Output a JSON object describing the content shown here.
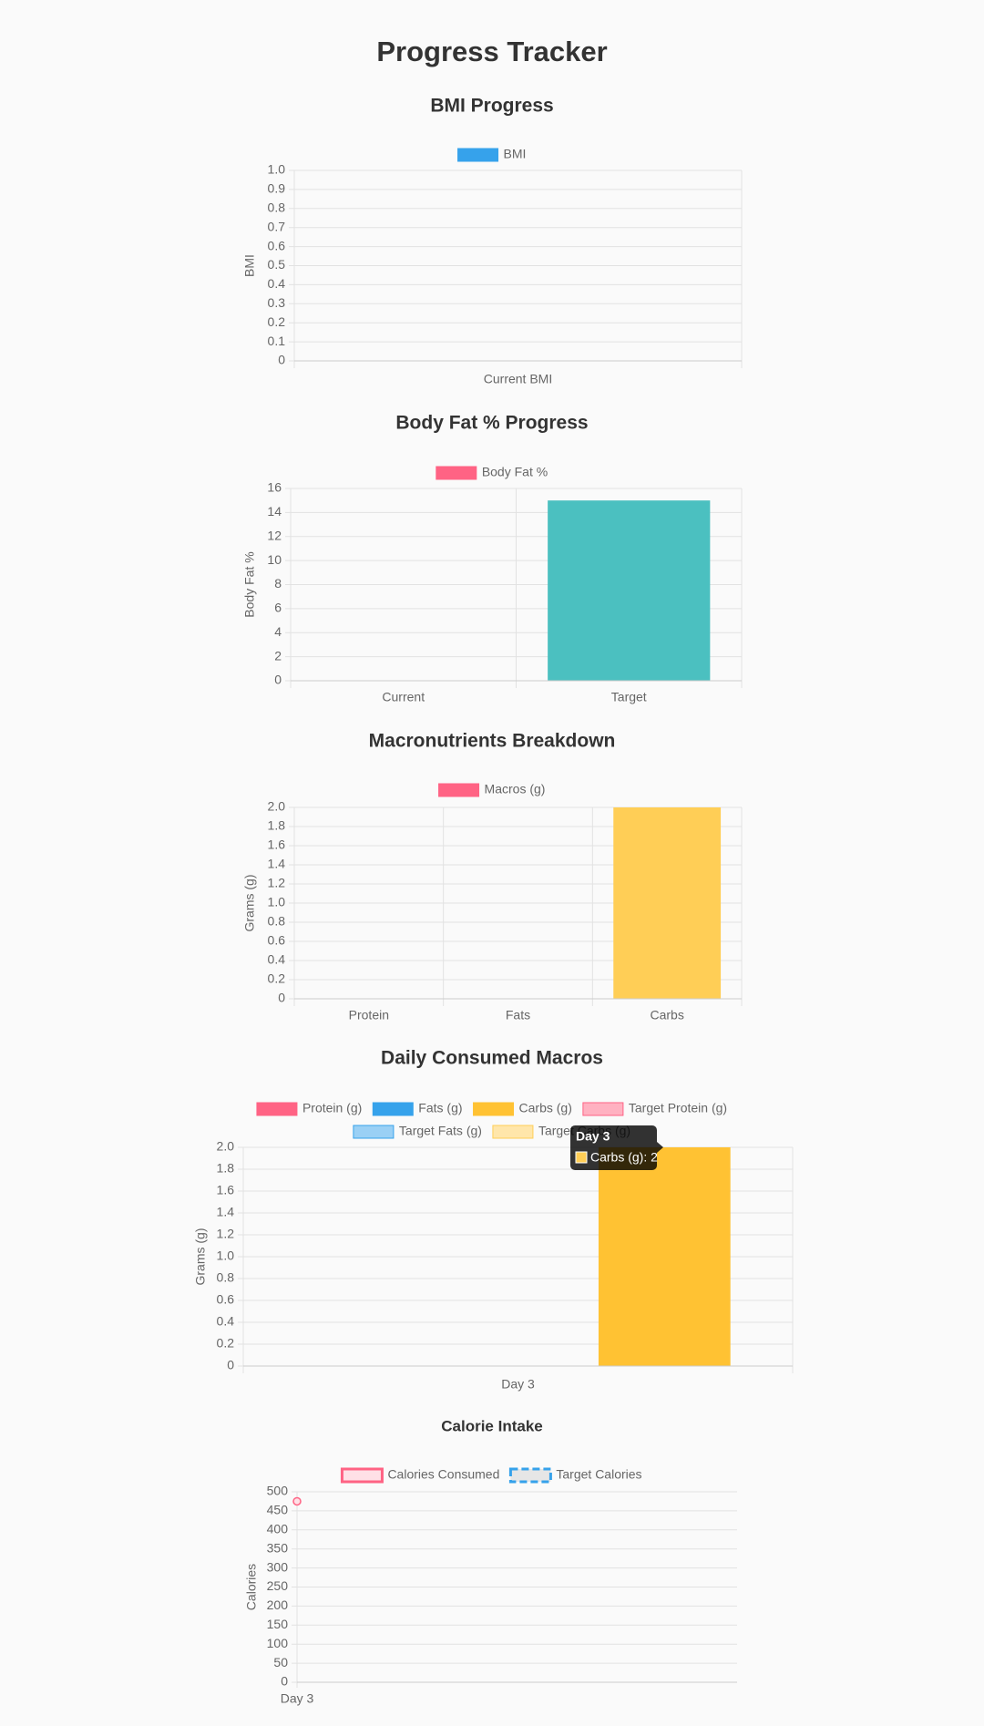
{
  "title": "Progress Tracker",
  "chart_data": [
    {
      "type": "bar",
      "title": "BMI Progress",
      "ylabel": "BMI",
      "categories": [
        "Current BMI"
      ],
      "series": [
        {
          "name": "BMI",
          "color": "#36a2eb",
          "values": [
            0
          ]
        }
      ],
      "ylim": [
        0,
        1
      ],
      "yticks": [
        0,
        0.1,
        0.2,
        0.3,
        0.4,
        0.5,
        0.6,
        0.7,
        0.8,
        0.9,
        {
          "value": 1,
          "label": "1.0"
        }
      ],
      "grid": true,
      "legend": "top"
    },
    {
      "type": "bar",
      "title": "Body Fat % Progress",
      "ylabel": "Body Fat %",
      "categories": [
        "Current",
        "Target"
      ],
      "series": [
        {
          "name": "Body Fat %",
          "color": "#ff6384",
          "colors": [
            "#ff6384",
            "#4bc0c0"
          ],
          "values": [
            0,
            15
          ]
        }
      ],
      "ylim": [
        0,
        16
      ],
      "yticks": [
        0,
        2,
        4,
        6,
        8,
        10,
        12,
        14,
        16
      ],
      "grid": true,
      "legend": "top"
    },
    {
      "type": "bar",
      "title": "Macronutrients Breakdown",
      "ylabel": "Grams (g)",
      "categories": [
        "Protein",
        "Fats",
        "Carbs"
      ],
      "series": [
        {
          "name": "Macros (g)",
          "color": "#ff6384",
          "colors": [
            "#ff6384",
            "#36a2eb",
            "#ffce56"
          ],
          "values": [
            0,
            0,
            2
          ]
        }
      ],
      "ylim": [
        0,
        2
      ],
      "yticks": [
        0,
        0.2,
        0.4,
        0.6,
        0.8,
        {
          "value": 1,
          "label": "1.0"
        },
        1.2,
        1.4,
        1.6,
        1.8,
        {
          "value": 2,
          "label": "2.0"
        }
      ],
      "grid": true,
      "legend": "top"
    },
    {
      "type": "bar",
      "title": "Daily Consumed Macros",
      "ylabel": "Grams (g)",
      "categories": [
        "Day 3"
      ],
      "series": [
        {
          "name": "Protein (g)",
          "color": "#ff6384",
          "values": [
            0
          ]
        },
        {
          "name": "Fats (g)",
          "color": "#36a2eb",
          "values": [
            0
          ]
        },
        {
          "name": "Carbs (g)",
          "color": "#ffc233",
          "values": [
            2
          ]
        },
        {
          "name": "Target Protein (g)",
          "color": "#ff6384",
          "fill": "#ffb1c1",
          "kind": "line",
          "values": [
            null
          ]
        },
        {
          "name": "Target Fats (g)",
          "color": "#36a2eb",
          "fill": "#9ad0f5",
          "kind": "line",
          "values": [
            null
          ]
        },
        {
          "name": "Target Carbs (g)",
          "color": "#ffce56",
          "fill": "#ffe6aa",
          "kind": "line",
          "values": [
            null
          ]
        }
      ],
      "ylim": [
        0,
        2
      ],
      "yticks": [
        0,
        0.2,
        0.4,
        0.6,
        0.8,
        {
          "value": 1,
          "label": "1.0"
        },
        1.2,
        1.4,
        1.6,
        1.8,
        {
          "value": 2,
          "label": "2.0"
        }
      ],
      "grid": true,
      "legend": "top",
      "tooltip": {
        "title": "Day 3",
        "label": "Carbs (g): 2"
      }
    },
    {
      "type": "line",
      "title": "Calorie Intake",
      "ylabel": "Calories",
      "categories": [
        "Day 3"
      ],
      "series": [
        {
          "name": "Calories Consumed",
          "color": "#ff6384",
          "fill": "#ffe0e6",
          "values": [
            475
          ]
        },
        {
          "name": "Target Calories",
          "color": "#36a2eb",
          "fill": "#e6e6e6",
          "dash": true,
          "values": [
            null
          ]
        }
      ],
      "ylim": [
        0,
        500
      ],
      "yticks": [
        0,
        50,
        100,
        150,
        200,
        250,
        300,
        350,
        400,
        450,
        500
      ],
      "grid": true,
      "legend": "top"
    }
  ]
}
